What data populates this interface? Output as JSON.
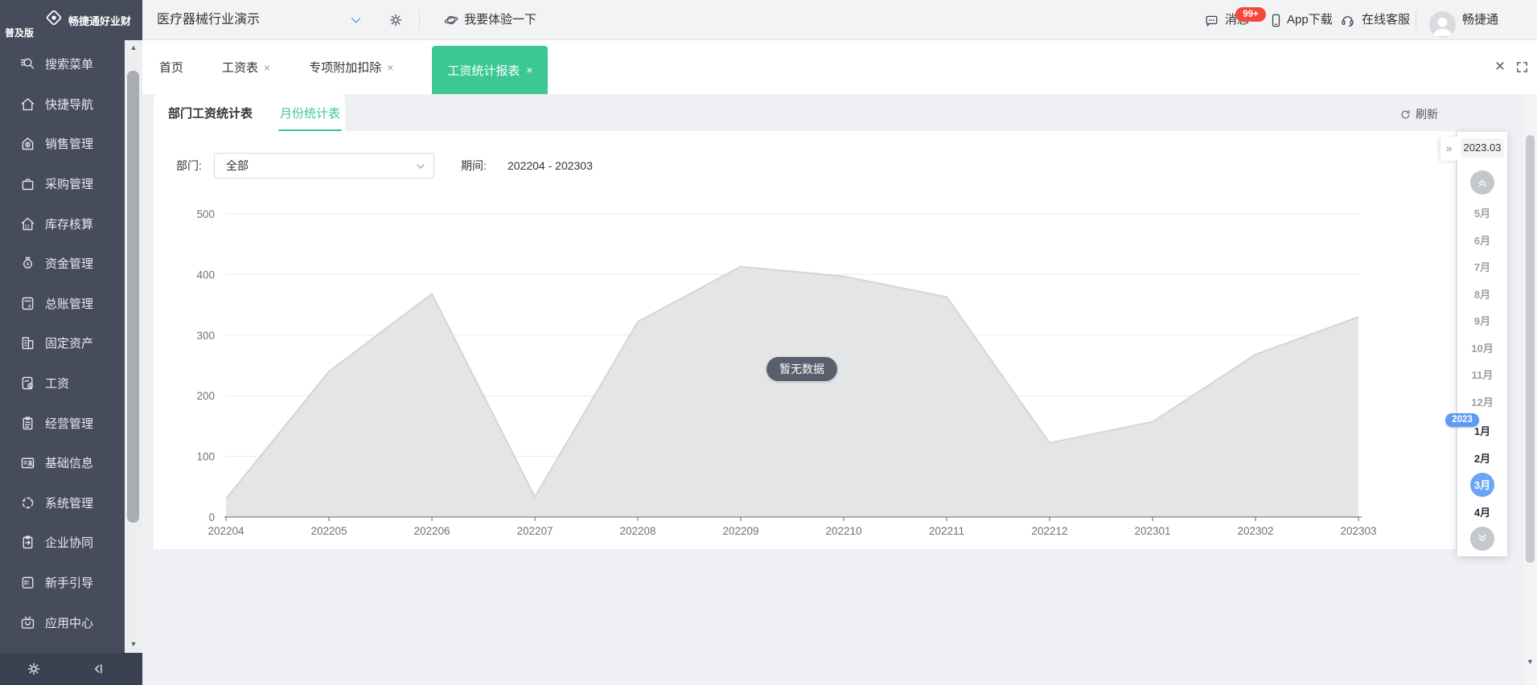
{
  "app": {
    "logo_title": "畅捷通好业财",
    "logo_subtitle": "普及版"
  },
  "header": {
    "company_selector": "医疗器械行业演示",
    "experience_label": "我要体验一下",
    "messages_label": "消息",
    "messages_badge": "99+",
    "app_download_label": "App下载",
    "online_service_label": "在线客服",
    "username": "畅捷通"
  },
  "sidebar": {
    "items": [
      {
        "name": "search-menu",
        "icon": "search",
        "label": "搜索菜单"
      },
      {
        "name": "quick-nav",
        "icon": "home",
        "label": "快捷导航"
      },
      {
        "name": "sales-mgmt",
        "icon": "store",
        "label": "销售管理"
      },
      {
        "name": "purchase-mgmt",
        "icon": "bag",
        "label": "采购管理"
      },
      {
        "name": "inventory-account",
        "icon": "warehouse",
        "label": "库存核算"
      },
      {
        "name": "funds-mgmt",
        "icon": "moneybag",
        "label": "资金管理"
      },
      {
        "name": "general-ledger",
        "icon": "calc",
        "label": "总账管理"
      },
      {
        "name": "fixed-assets",
        "icon": "building",
        "label": "固定资产"
      },
      {
        "name": "salary",
        "icon": "sheet",
        "label": "工资"
      },
      {
        "name": "operations-mgmt",
        "icon": "clipboard",
        "label": "经营管理"
      },
      {
        "name": "base-info",
        "icon": "idcard",
        "label": "基础信息"
      },
      {
        "name": "system-mgmt",
        "icon": "sync",
        "label": "系统管理"
      },
      {
        "name": "enterprise-collab",
        "icon": "cliparrow",
        "label": "企业协同"
      },
      {
        "name": "newbie-guide",
        "icon": "newbook",
        "label": "新手引导"
      },
      {
        "name": "app-center",
        "icon": "tv",
        "label": "应用中心"
      }
    ]
  },
  "tabs": [
    {
      "name": "home",
      "label": "首页",
      "closable": false,
      "active": false
    },
    {
      "name": "salary-sheet",
      "label": "工资表",
      "closable": true,
      "active": false
    },
    {
      "name": "special-deduction",
      "label": "专项附加扣除",
      "closable": true,
      "active": false
    },
    {
      "name": "salary-report",
      "label": "工资统计报表",
      "closable": true,
      "active": true
    }
  ],
  "subtabs": [
    {
      "name": "dept-salary-report",
      "label": "部门工资统计表",
      "active": false
    },
    {
      "name": "month-salary-report",
      "label": "月份统计表",
      "active": true
    }
  ],
  "toolbar": {
    "refresh_label": "刷新"
  },
  "filters": {
    "department_label": "部门:",
    "department_value": "全部",
    "period_label": "期间:",
    "period_value": "202204 - 202303"
  },
  "chart_data": {
    "type": "area",
    "x": [
      "202204",
      "202205",
      "202206",
      "202207",
      "202208",
      "202209",
      "202210",
      "202211",
      "202212",
      "202301",
      "202302",
      "202303"
    ],
    "values": [
      30,
      240,
      368,
      33,
      322,
      413,
      397,
      363,
      122,
      157,
      268,
      330
    ],
    "title": "",
    "xlabel": "",
    "ylabel": "",
    "ylim": [
      0,
      500
    ],
    "ytick_step": 100,
    "grid": true,
    "legend": "none",
    "fill_color": "#e4e5e7",
    "line_color": "#d3d5d8",
    "no_data_label": "暂无数据"
  },
  "month_panel": {
    "header": "2023.03",
    "year_badge": "2023",
    "months": [
      {
        "label": "5月",
        "style": "muted"
      },
      {
        "label": "6月",
        "style": "muted"
      },
      {
        "label": "7月",
        "style": "muted"
      },
      {
        "label": "8月",
        "style": "muted"
      },
      {
        "label": "9月",
        "style": "muted"
      },
      {
        "label": "10月",
        "style": "muted"
      },
      {
        "label": "11月",
        "style": "muted"
      },
      {
        "label": "12月",
        "style": "muted"
      },
      {
        "label": "1月",
        "style": "normal",
        "year_start": true
      },
      {
        "label": "2月",
        "style": "normal"
      },
      {
        "label": "3月",
        "style": "selected"
      },
      {
        "label": "4月",
        "style": "normal"
      }
    ]
  },
  "glyphs": {
    "close": "×",
    "scroll_up": "▲",
    "scroll_down": "▼",
    "expand": "»"
  },
  "colors": {
    "accent_green": "#3cc795",
    "accent_blue": "#5e9bf6",
    "badge_red": "#f5483d",
    "sidebar_bg": "#464c5c",
    "area_fill": "#e4e5e7"
  }
}
